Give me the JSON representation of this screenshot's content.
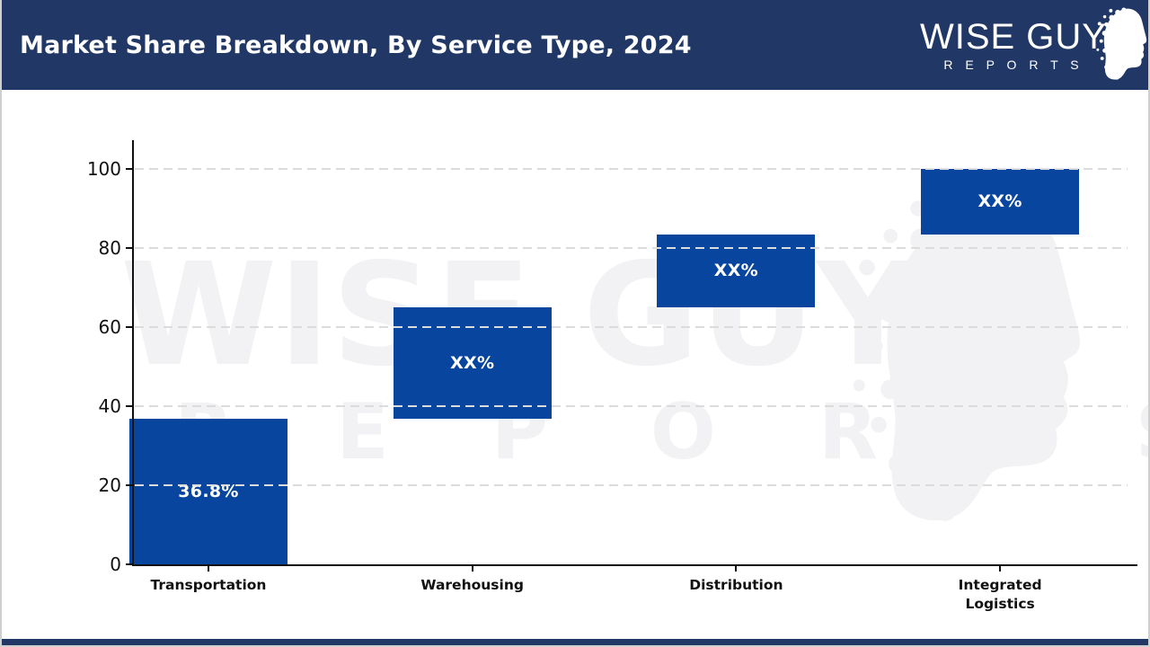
{
  "header": {
    "title": "Market Share Breakdown, By Service Type, 2024",
    "logo": {
      "line1": "WISE GUY",
      "line2": "R E P O R T S"
    }
  },
  "watermark": {
    "line1": "WISE GUY",
    "line2": "R E P O R T S"
  },
  "colors": {
    "header_bg": "#213866",
    "footer_bg": "#213866",
    "bar": "#08459e",
    "grid": "#dcdcdc",
    "axis": "#111111",
    "value_label": "#ffffff",
    "watermark": "#f2f2f4"
  },
  "chart_data": {
    "type": "bar",
    "subtype": "waterfall-floating-bars",
    "title": "Market Share Breakdown, By Service Type, 2024",
    "xlabel": "",
    "ylabel": "",
    "categories": [
      "Transportation",
      "Warehousing",
      "Distribution",
      "Integrated\nLogistics"
    ],
    "bars": [
      {
        "category": "Transportation",
        "start": 0,
        "end": 36.8,
        "label": "36.8%"
      },
      {
        "category": "Warehousing",
        "start": 36.8,
        "end": 65,
        "label": "XX%"
      },
      {
        "category": "Distribution",
        "start": 65,
        "end": 83.5,
        "label": "XX%"
      },
      {
        "category": "Integrated Logistics",
        "start": 83.5,
        "end": 100,
        "label": "XX%"
      }
    ],
    "yticks": [
      0,
      20,
      40,
      60,
      80,
      100
    ],
    "ylim": [
      0,
      106
    ],
    "grid": "horizontal-dashed",
    "legend": "none"
  }
}
